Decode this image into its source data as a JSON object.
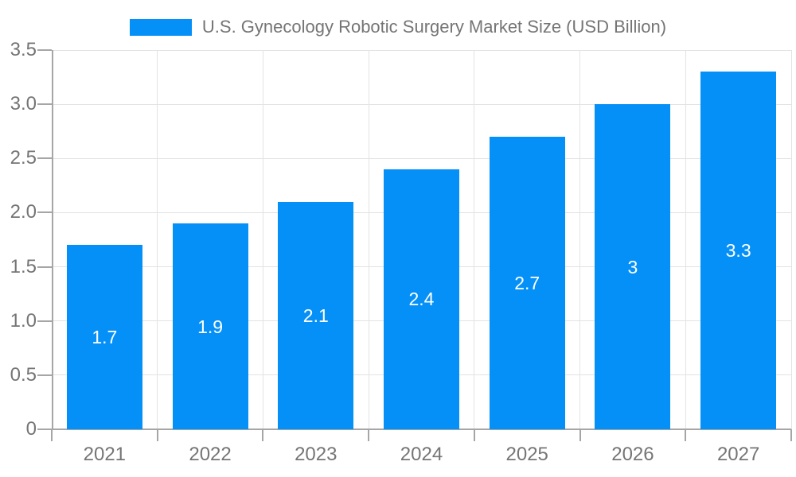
{
  "chart_data": {
    "type": "bar",
    "title": "U.S. Gynecology Robotic Surgery Market Size (USD Billion)",
    "categories": [
      "2021",
      "2022",
      "2023",
      "2024",
      "2025",
      "2026",
      "2027"
    ],
    "values": [
      1.7,
      1.9,
      2.1,
      2.4,
      2.7,
      3,
      3.3
    ],
    "value_labels": [
      "1.7",
      "1.9",
      "2.1",
      "2.4",
      "2.7",
      "3",
      "3.3"
    ],
    "xlabel": "",
    "ylabel": "",
    "ylim": [
      0,
      3.5
    ],
    "yticks": [
      0,
      0.5,
      1,
      1.5,
      2,
      2.5,
      3,
      3.5
    ],
    "ytick_labels": [
      "0",
      "0.5",
      "1.0",
      "1.5",
      "2.0",
      "2.5",
      "3.0",
      "3.5"
    ],
    "grid": true,
    "legend_position": "top",
    "colors": {
      "bar": "#0590f8",
      "title_text": "#757575",
      "axis_text": "#757575",
      "value_label_text": "#ffffff",
      "grid_line": "#e3e3e3",
      "axis_line": "#a6a6a6",
      "background": "#ffffff"
    }
  }
}
